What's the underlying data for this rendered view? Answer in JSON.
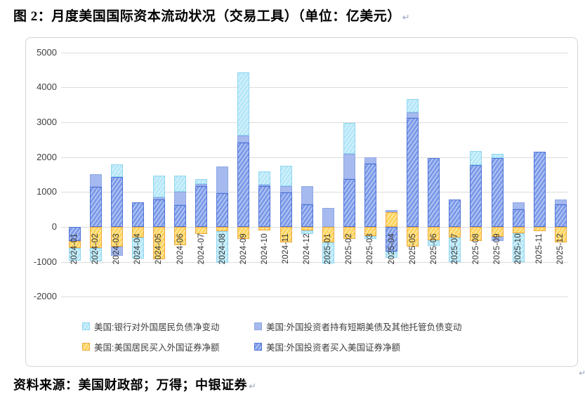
{
  "page": {
    "title": "图 2：月度美国国际资本流动状况（交易工具）（单位：亿美元）",
    "source": "资料来源：美国财政部；万得；中银证券",
    "paragraph_mark": "↵"
  },
  "chart_data": {
    "type": "bar",
    "stacked": true,
    "title": "月度美国国际资本流动状况（交易工具）",
    "unit": "亿美元",
    "grid": true,
    "legend_position": "bottom",
    "ylim": [
      -2000,
      5000
    ],
    "yticks": [
      5000,
      4000,
      3000,
      2000,
      1000,
      0,
      -1000,
      -2000
    ],
    "categories": [
      "2024-01",
      "2024-02",
      "2024-03",
      "2024-04",
      "2024-05",
      "2024-06",
      "2024-07",
      "2024-08",
      "2024-09",
      "2024-10",
      "2024-11",
      "2024-12",
      "2025-01",
      "2025-02",
      "2025-03",
      "2025-04",
      "2025-05",
      "2025-06",
      "2025-07",
      "2025-08",
      "2025-09",
      "2025-10",
      "2025-11",
      "2025-12"
    ],
    "stack_order": [
      3,
      2,
      1,
      0
    ],
    "series": [
      {
        "name": "美国:银行对外国居民负债净变动",
        "color": "#b4e7f8",
        "border": "#8ed5f0",
        "hatch": true,
        "values": [
          -375,
          -385,
          355,
          -605,
          620,
          455,
          150,
          -905,
          1800,
          365,
          570,
          -100,
          -605,
          885,
          -70,
          -185,
          400,
          -150,
          -705,
          400,
          110,
          -840,
          0,
          0
        ]
      },
      {
        "name": "美国:外国投资者持有短期美债及其他托管负债变动",
        "color": "#a6baef",
        "border": "#8da5e6",
        "hatch": false,
        "values": [
          0,
          350,
          -265,
          0,
          70,
          395,
          50,
          770,
          200,
          40,
          185,
          535,
          535,
          725,
          190,
          70,
          150,
          0,
          0,
          0,
          -135,
          200,
          0,
          150
        ]
      },
      {
        "name": "美国:美国居民买入外国证券净额",
        "color": "#ffd45c",
        "border": "#eba73e",
        "hatch": true,
        "values": [
          -200,
          -600,
          -565,
          -295,
          -930,
          -530,
          -195,
          -130,
          -335,
          -100,
          -435,
          -100,
          -435,
          -335,
          -270,
          415,
          -570,
          -385,
          -300,
          -400,
          -275,
          -175,
          -130,
          -435
        ]
      },
      {
        "name": "美国:外国投资者买入美国证券净额",
        "color": "#7b9ae9",
        "border": "#4d72d6",
        "hatch": true,
        "values": [
          -400,
          1150,
          1430,
          705,
          780,
          620,
          1170,
          970,
          2420,
          1175,
          990,
          640,
          0,
          1375,
          1810,
          -705,
          3120,
          1980,
          785,
          1770,
          1980,
          505,
          2150,
          640
        ]
      }
    ]
  }
}
